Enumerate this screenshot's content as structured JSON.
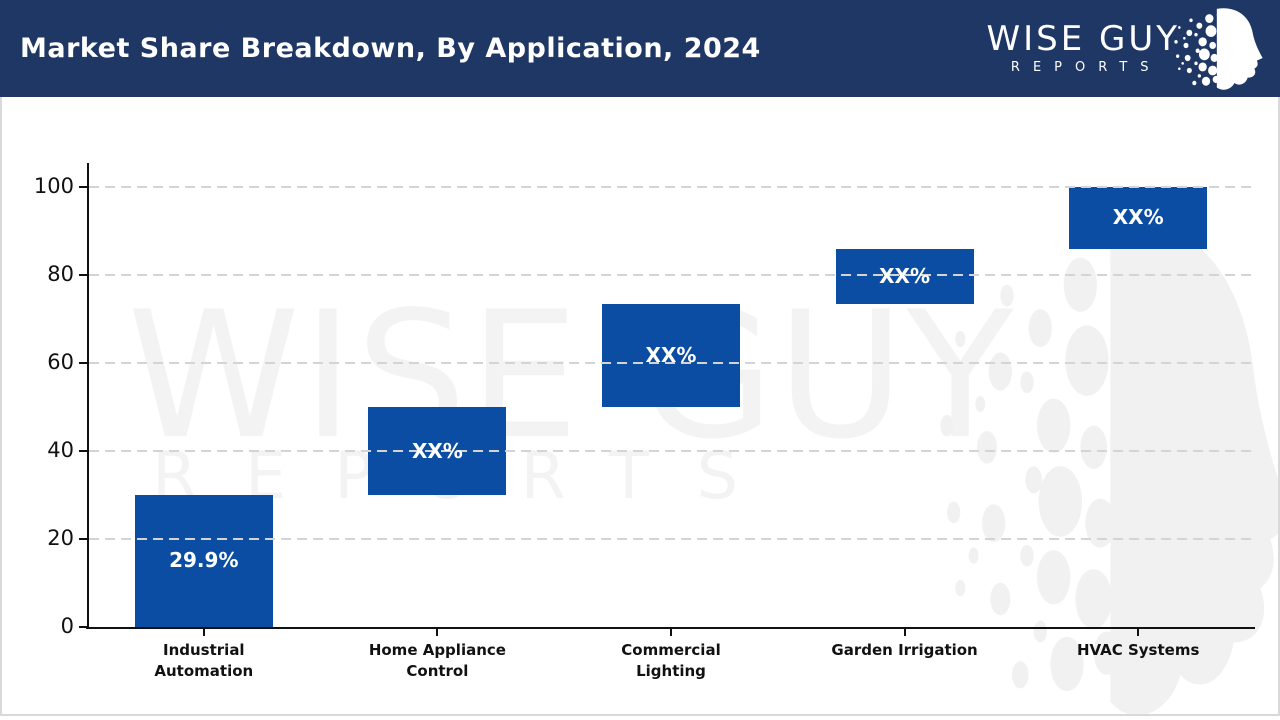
{
  "header": {
    "title": "Market Share Breakdown, By Application, 2024",
    "logo": {
      "line1": "WISE GUY",
      "line2": "REPORTS"
    }
  },
  "watermark": {
    "line1": "WISE GUY",
    "line2": "REPORTS"
  },
  "colors": {
    "header_bg": "#1f3765",
    "bar": "#0b4da2",
    "grid": "#d4d4d4",
    "axis": "#111111",
    "bar_label": "#ffffff",
    "watermark": "#f3f3f3"
  },
  "chart_data": {
    "type": "bar",
    "subtype": "waterfall-stepped",
    "title": "Market Share Breakdown, By Application, 2024",
    "categories": [
      "Industrial Automation",
      "Home Appliance Control",
      "Commercial Lighting",
      "Garden Irrigation",
      "HVAC Systems"
    ],
    "categories_lines": [
      [
        "Industrial",
        "Automation"
      ],
      [
        "Home Appliance",
        "Control"
      ],
      [
        "Commercial",
        "Lighting"
      ],
      [
        "Garden Irrigation"
      ],
      [
        "HVAC Systems"
      ]
    ],
    "segments": [
      {
        "start": 0,
        "end": 29.9
      },
      {
        "start": 29.9,
        "end": 50
      },
      {
        "start": 50,
        "end": 73.5
      },
      {
        "start": 73.5,
        "end": 86
      },
      {
        "start": 86,
        "end": 100
      }
    ],
    "values": [
      29.9,
      20.1,
      23.5,
      12.5,
      14.0
    ],
    "bar_labels": [
      "29.9%",
      "XX%",
      "XX%",
      "XX%",
      "XX%"
    ],
    "yticks": [
      0,
      20,
      40,
      60,
      80,
      100
    ],
    "ylim": [
      0,
      105.5
    ],
    "xlabel": "",
    "ylabel": "",
    "grid": {
      "axis": "y",
      "style": "dashed",
      "drawn_over_bars": true
    },
    "legend": null
  }
}
